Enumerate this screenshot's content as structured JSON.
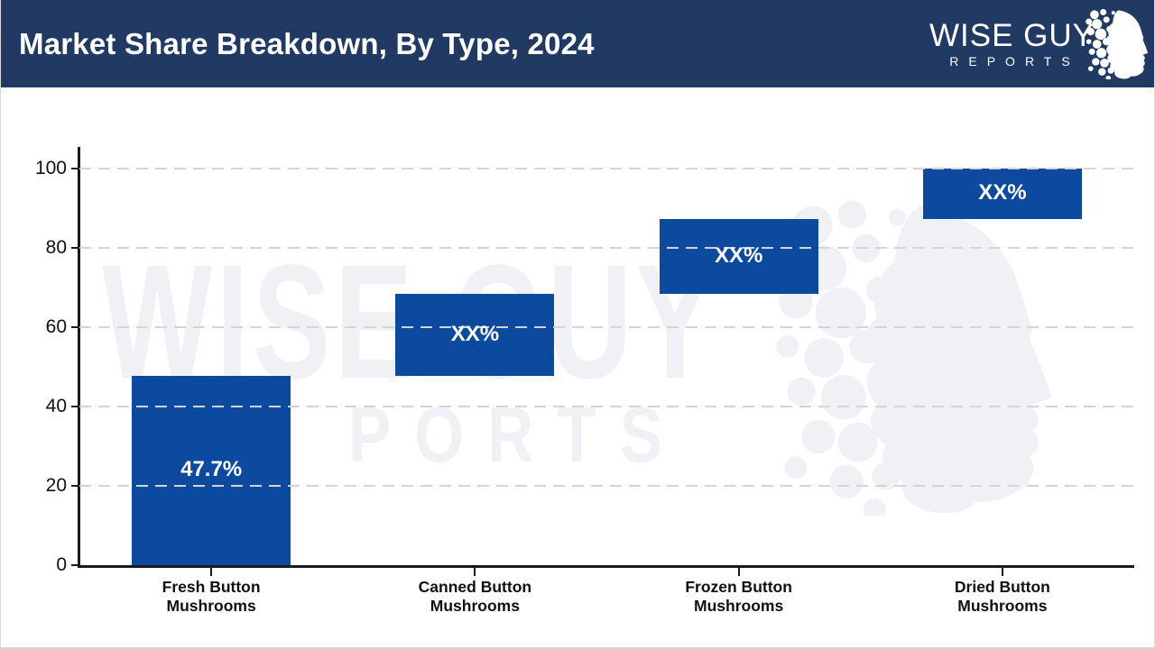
{
  "header": {
    "title": "Market Share Breakdown, By Type, 2024",
    "logo": {
      "line1": "WISE GUY",
      "line2": "REPORTS",
      "face_icon": "dotted-face-profile"
    }
  },
  "watermark": {
    "line1": "WISE GUY",
    "line2": "PORTS",
    "face_icon": "dotted-face-profile"
  },
  "chart_data": {
    "type": "bar",
    "subtype": "waterfall",
    "title": "Market Share Breakdown, By Type, 2024",
    "categories": [
      "Fresh Button\nMushrooms",
      "Canned Button\nMushrooms",
      "Frozen Button\nMushrooms",
      "Dried Button\nMushrooms"
    ],
    "segments": [
      {
        "category": "Fresh Button Mushrooms",
        "start": 0,
        "end": 47.7,
        "label": "47.7%"
      },
      {
        "category": "Canned Button Mushrooms",
        "start": 47.7,
        "end": 68.3,
        "label": "XX%"
      },
      {
        "category": "Frozen Button Mushrooms",
        "start": 68.3,
        "end": 87.3,
        "label": "XX%"
      },
      {
        "category": "Dried Button Mushrooms",
        "start": 87.3,
        "end": 100,
        "label": "XX%"
      }
    ],
    "ylim": [
      0,
      100
    ],
    "yticks": [
      0,
      20,
      40,
      60,
      80,
      100
    ],
    "xlabel": "",
    "ylabel": "",
    "grid": "horizontal-dashed",
    "legend": "none"
  },
  "colors": {
    "header_bg": "#213a64",
    "bar_blue": "#0c4aa0",
    "grid_gray": "#d4d4d4",
    "axis_black": "#1a1a1a",
    "watermark_gray": "#eff1f4"
  }
}
